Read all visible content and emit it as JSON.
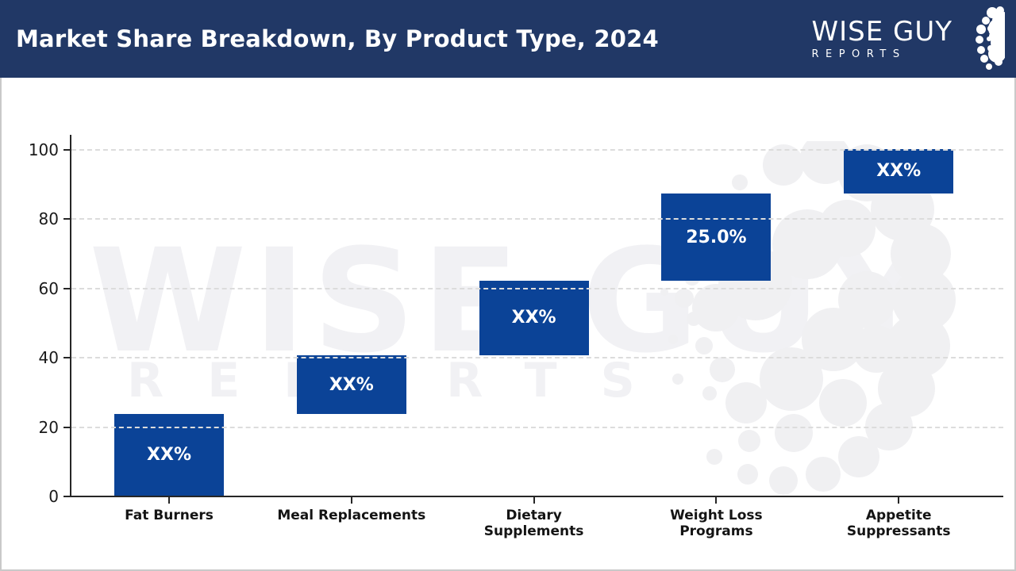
{
  "header": {
    "title": "Market Share Breakdown, By Product Type, 2024",
    "logo": {
      "name": "WISE GUY",
      "sub": "REPORTS"
    }
  },
  "watermark": {
    "line1": "WISE GUY",
    "line2": "REPORTS"
  },
  "chart_data": {
    "type": "bar",
    "subtype": "floating_segment_waterfall",
    "title": "Market Share Breakdown, By Product Type, 2024",
    "categories": [
      "Fat Burners",
      "Meal Replacements",
      "Dietary Supplements",
      "Weight Loss Programs",
      "Appetite Suppressants"
    ],
    "category_label_lines": [
      [
        "Fat Burners"
      ],
      [
        "Meal Replacements"
      ],
      [
        "Dietary",
        "Supplements"
      ],
      [
        "Weight Loss",
        "Programs"
      ],
      [
        "Appetite",
        "Suppressants"
      ]
    ],
    "segments": [
      {
        "start": 0,
        "end": 23.5
      },
      {
        "start": 23.5,
        "end": 40.5
      },
      {
        "start": 40.5,
        "end": 62
      },
      {
        "start": 62,
        "end": 87
      },
      {
        "start": 87,
        "end": 100
      }
    ],
    "values": [
      23.5,
      17,
      21.5,
      25,
      13
    ],
    "bar_labels": [
      "XX%",
      "XX%",
      "XX%",
      "25.0%",
      "XX%"
    ],
    "xlabel": "",
    "ylabel": "",
    "yticks": [
      0,
      20,
      40,
      60,
      80,
      100
    ],
    "ylim": [
      0,
      104
    ],
    "grid": {
      "axis": "y",
      "style": "dashed",
      "color": "#dcdcdc"
    },
    "legend": "none",
    "bar_color": "#0b4397",
    "bar_label_color": "#ffffff"
  },
  "colors": {
    "header_bg": "#213866",
    "bar": "#0b4397",
    "grid": "#dcdcdc",
    "axis": "#262626",
    "watermark": "#f1f1f4",
    "page_border": "#c9c9c9"
  }
}
